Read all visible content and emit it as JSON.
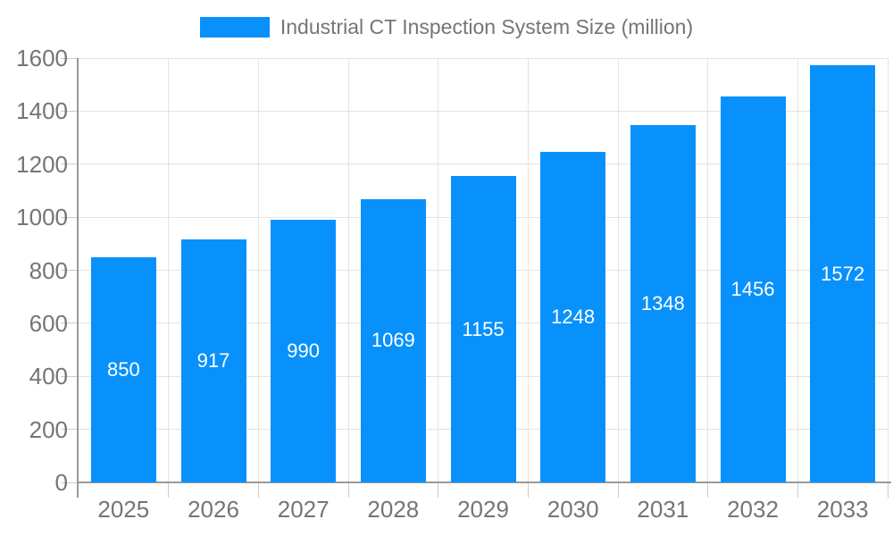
{
  "chart_data": {
    "type": "bar",
    "title": "Industrial CT Inspection System Size (million)",
    "categories": [
      "2025",
      "2026",
      "2027",
      "2028",
      "2029",
      "2030",
      "2031",
      "2032",
      "2033"
    ],
    "values": [
      850,
      917,
      990,
      1069,
      1155,
      1248,
      1348,
      1456,
      1572
    ],
    "series_name": "Industrial CT Inspection System Size (million)",
    "xlabel": "",
    "ylabel": "",
    "ylim": [
      0,
      1600
    ],
    "ytick_step": 200,
    "yticks": [
      0,
      200,
      400,
      600,
      800,
      1000,
      1200,
      1400,
      1600
    ],
    "grid": true,
    "legend_position": "top-center",
    "bar_value_labels_position": "inside-center",
    "colors": {
      "bar": "#0991FB",
      "axis_line": "#999999",
      "gridline": "#e3e3e3",
      "tick": "#cccccc",
      "axis_label": "#757575",
      "legend_text": "#757575",
      "bar_value_label": "#ffffff",
      "background": "#ffffff"
    }
  }
}
